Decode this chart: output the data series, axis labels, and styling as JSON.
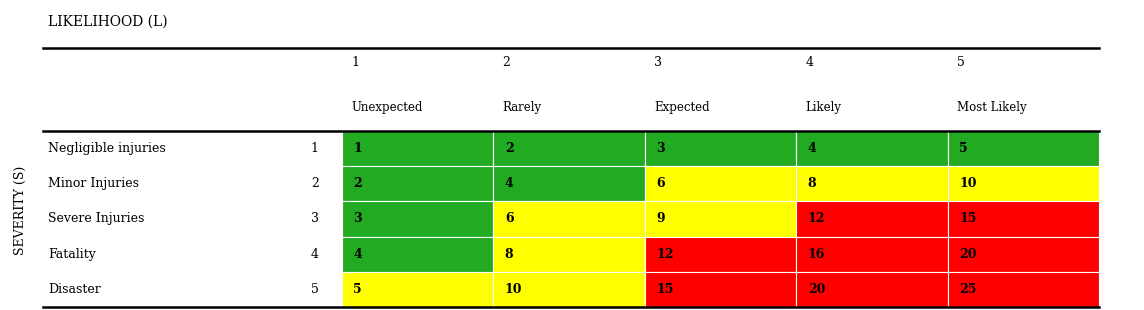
{
  "title": "LIKELIHOOD (L)",
  "ylabel": "SEVERITY (S)",
  "col_numbers": [
    "1",
    "2",
    "3",
    "4",
    "5"
  ],
  "col_labels": [
    "Unexpected",
    "Rarely",
    "Expected",
    "Likely",
    "Most Likely"
  ],
  "row_labels": [
    "Negligible injuries",
    "Minor Injuries",
    "Severe Injuries",
    "Fatality",
    "Disaster"
  ],
  "row_numbers": [
    "1",
    "2",
    "3",
    "4",
    "5"
  ],
  "cell_values": [
    [
      1,
      2,
      3,
      4,
      5
    ],
    [
      2,
      4,
      6,
      8,
      10
    ],
    [
      3,
      6,
      9,
      12,
      15
    ],
    [
      4,
      8,
      12,
      16,
      20
    ],
    [
      5,
      10,
      15,
      20,
      25
    ]
  ],
  "cell_colors": [
    [
      "#22aa22",
      "#22aa22",
      "#22aa22",
      "#22aa22",
      "#22aa22"
    ],
    [
      "#22aa22",
      "#22aa22",
      "#ffff00",
      "#ffff00",
      "#ffff00"
    ],
    [
      "#22aa22",
      "#ffff00",
      "#ffff00",
      "#ff0000",
      "#ff0000"
    ],
    [
      "#22aa22",
      "#ffff00",
      "#ff0000",
      "#ff0000",
      "#ff0000"
    ],
    [
      "#ffff00",
      "#ffff00",
      "#ff0000",
      "#ff0000",
      "#ff0000"
    ]
  ],
  "bg_color": "#ffffff",
  "figsize": [
    11.44,
    3.1
  ],
  "dpi": 100
}
